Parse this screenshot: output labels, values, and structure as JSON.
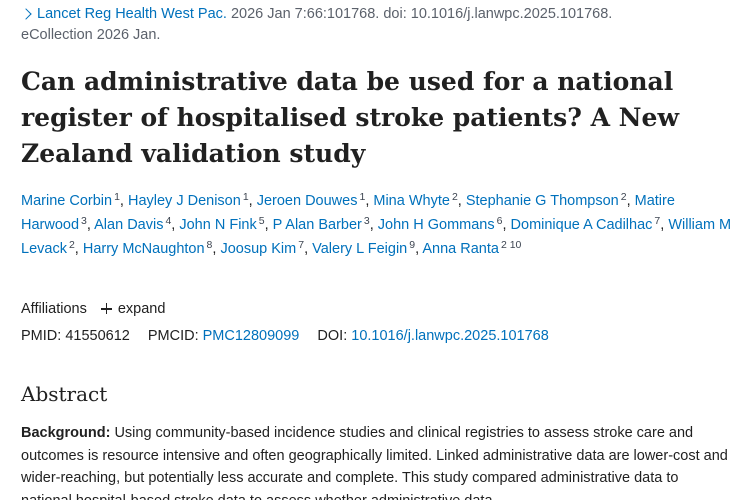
{
  "citation": {
    "journal": "Lancet Reg Health West Pac.",
    "details": "2026 Jan 7:66:101768. doi: 10.1016/j.lanwpc.2025.101768.",
    "ecollection": "eCollection 2026 Jan."
  },
  "article": {
    "title": "Can administrative data be used for a national register of hospitalised stroke patients? A New Zealand validation study"
  },
  "authors": [
    {
      "name": "Marine Corbin",
      "aff": "1"
    },
    {
      "name": "Hayley J Denison",
      "aff": "1"
    },
    {
      "name": "Jeroen Douwes",
      "aff": "1"
    },
    {
      "name": "Mina Whyte",
      "aff": "2"
    },
    {
      "name": "Stephanie G Thompson",
      "aff": "2"
    },
    {
      "name": "Matire Harwood",
      "aff": "3"
    },
    {
      "name": "Alan Davis",
      "aff": "4"
    },
    {
      "name": "John N Fink",
      "aff": "5"
    },
    {
      "name": "P Alan Barber",
      "aff": "3"
    },
    {
      "name": "John H Gommans",
      "aff": "6"
    },
    {
      "name": "Dominique A Cadilhac",
      "aff": "7"
    },
    {
      "name": "William M Levack",
      "aff": "2"
    },
    {
      "name": "Harry McNaughton",
      "aff": "8"
    },
    {
      "name": "Joosup Kim",
      "aff": "7"
    },
    {
      "name": "Valery L Feigin",
      "aff": "9"
    },
    {
      "name": "Anna Ranta",
      "aff": "2 10"
    }
  ],
  "affiliations": {
    "label": "Affiliations",
    "expand_label": "expand"
  },
  "identifiers": {
    "pmid_label": "PMID:",
    "pmid": "41550612",
    "pmcid_label": "PMCID:",
    "pmcid": "PMC12809099",
    "doi_label": "DOI:",
    "doi": "10.1016/j.lanwpc.2025.101768"
  },
  "abstract": {
    "heading": "Abstract",
    "background_label": "Background:",
    "background_text": "Using community-based incidence studies and clinical registries to assess stroke care and outcomes is resource intensive and often geographically limited. Linked administrative data are lower-cost and wider-reaching, but potentially less accurate and complete. This study compared administrative data to national hospital-based stroke data to assess whether administrative data"
  }
}
